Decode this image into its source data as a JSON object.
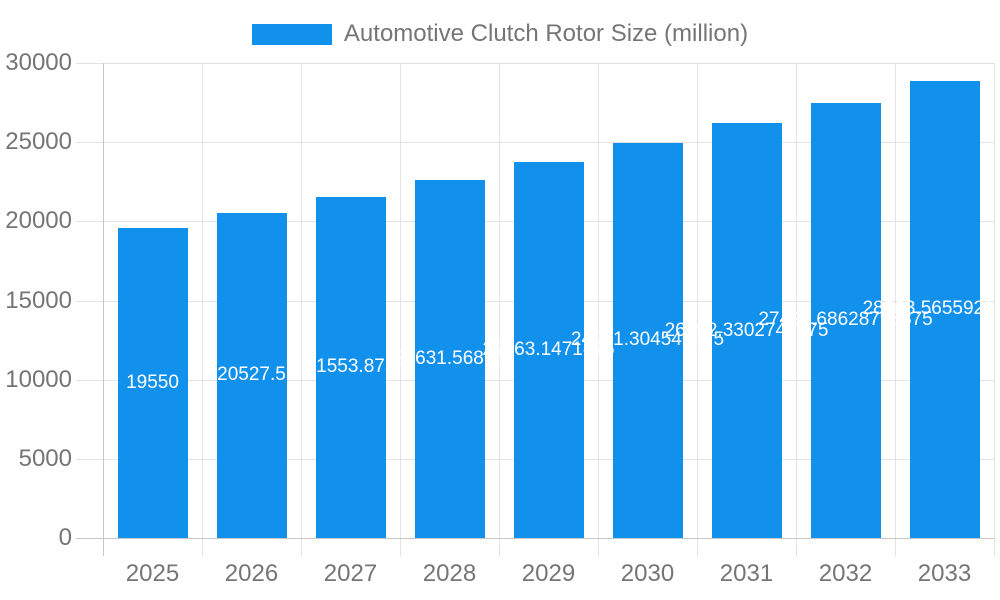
{
  "legend": {
    "label": "Automotive Clutch Rotor Size (million)"
  },
  "colors": {
    "bar": "#1191EC",
    "axis_text": "#757575",
    "grid_line": "#e3e3e3",
    "axis_line": "#c6c6c6",
    "bar_label_text": "#ffffff",
    "background": "#ffffff"
  },
  "chart_data": {
    "type": "bar",
    "title": "Automotive Clutch Rotor Size (million)",
    "categories": [
      "2025",
      "2026",
      "2027",
      "2028",
      "2029",
      "2030",
      "2031",
      "2032",
      "2033"
    ],
    "values": [
      19550,
      20527.5,
      21553.875,
      22631.56875,
      23763.1471875,
      24951.304546875,
      26192.3302741875,
      27491.68628796875,
      28863.5655921875
    ],
    "value_labels": [
      "19550",
      "20527.5",
      "21553.875",
      "22631.56875",
      "23763.1471875",
      "24951.304546875",
      "26192.3302741875",
      "27491.68628796875",
      "28863.5655921875"
    ],
    "xlabel": "",
    "ylabel": "",
    "ylim": [
      0,
      30000
    ],
    "yticks": [
      0,
      5000,
      10000,
      15000,
      20000,
      25000,
      30000
    ],
    "grid": true,
    "legend_position": "top",
    "bar_label_position": "inside-center"
  }
}
